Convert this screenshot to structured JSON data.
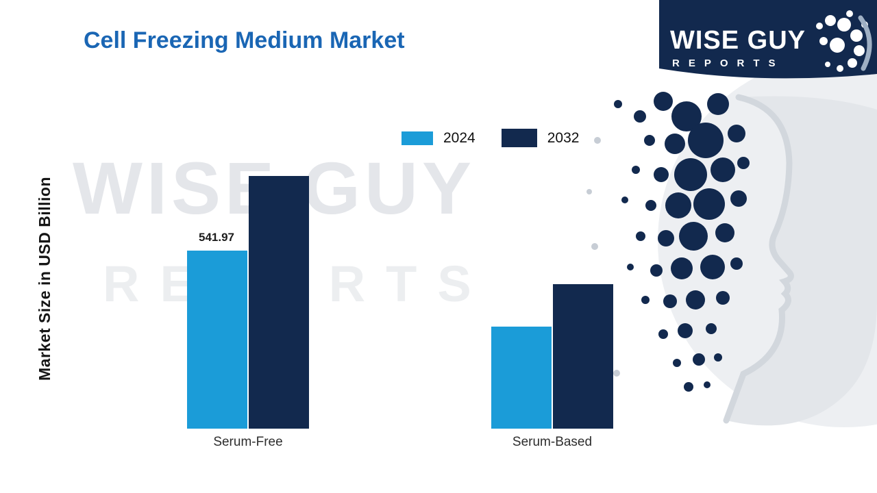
{
  "title": {
    "text": "Cell Freezing Medium Market",
    "color": "#1a66b4"
  },
  "brand": {
    "name_line": "WISE GUY",
    "sub_line": "REPORTS"
  },
  "watermark": {
    "line1": "WISE GUY",
    "line2": "REPORTS"
  },
  "colors": {
    "accent_2024": "#1b9cd8",
    "accent_2032": "#12294e",
    "title_blue": "#1a66b4",
    "decor_circle_gray": "#edeff2"
  },
  "chart_data": {
    "type": "bar",
    "title": "Cell Freezing Medium Market",
    "categories": [
      "Serum-Free",
      "Serum-Based"
    ],
    "series": [
      {
        "name": "2024",
        "color": "#1b9cd8",
        "values": [
          541.97,
          310
        ]
      },
      {
        "name": "2032",
        "color": "#12294e",
        "values": [
          770,
          440
        ]
      }
    ],
    "xlabel": "",
    "ylabel": "Market Size in USD Billion",
    "ylim": [
      0,
      800
    ],
    "grid": false,
    "legend_position": "top-right",
    "value_labels": [
      {
        "series": "2024",
        "category": "Serum-Free",
        "text": "541.97"
      }
    ]
  }
}
